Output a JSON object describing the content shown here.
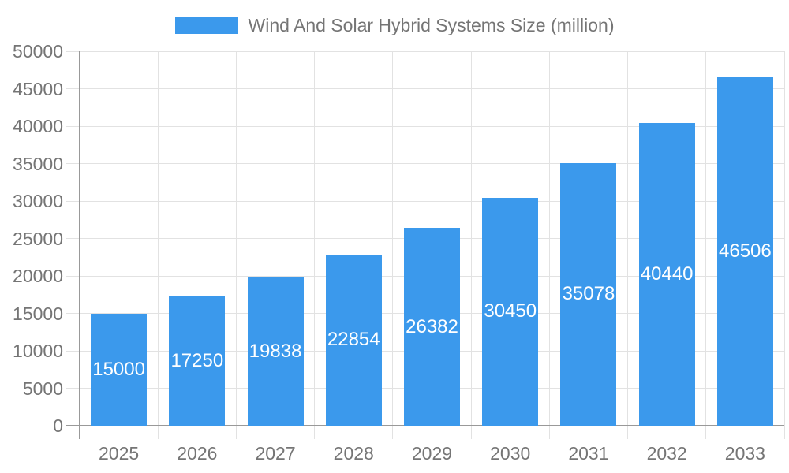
{
  "chart_data": {
    "type": "bar",
    "title": "Wind And Solar Hybrid Systems Size (million)",
    "legend": {
      "label": "Wind And Solar Hybrid Systems Size (million)",
      "position": "top-center"
    },
    "categories": [
      "2025",
      "2026",
      "2027",
      "2028",
      "2029",
      "2030",
      "2031",
      "2032",
      "2033"
    ],
    "series": [
      {
        "name": "Wind And Solar Hybrid Systems Size (million)",
        "values": [
          15000,
          17250,
          19838,
          22854,
          26382,
          30450,
          35078,
          40440,
          46506
        ],
        "color": "#3B99EC"
      }
    ],
    "xlabel": "",
    "ylabel": "",
    "ylim": [
      0,
      50000
    ],
    "yticks": [
      0,
      5000,
      10000,
      15000,
      20000,
      25000,
      30000,
      35000,
      40000,
      45000,
      50000
    ],
    "grid": true,
    "value_labels": {
      "show": true,
      "position": "inside-center",
      "color": "#FFFFFF"
    }
  },
  "colors": {
    "bar": "#3B99EC",
    "grid": "#E2E2E2",
    "axis": "#999999",
    "tick_text": "#757575",
    "value_text": "#FFFFFF",
    "background": "#FFFFFF"
  }
}
